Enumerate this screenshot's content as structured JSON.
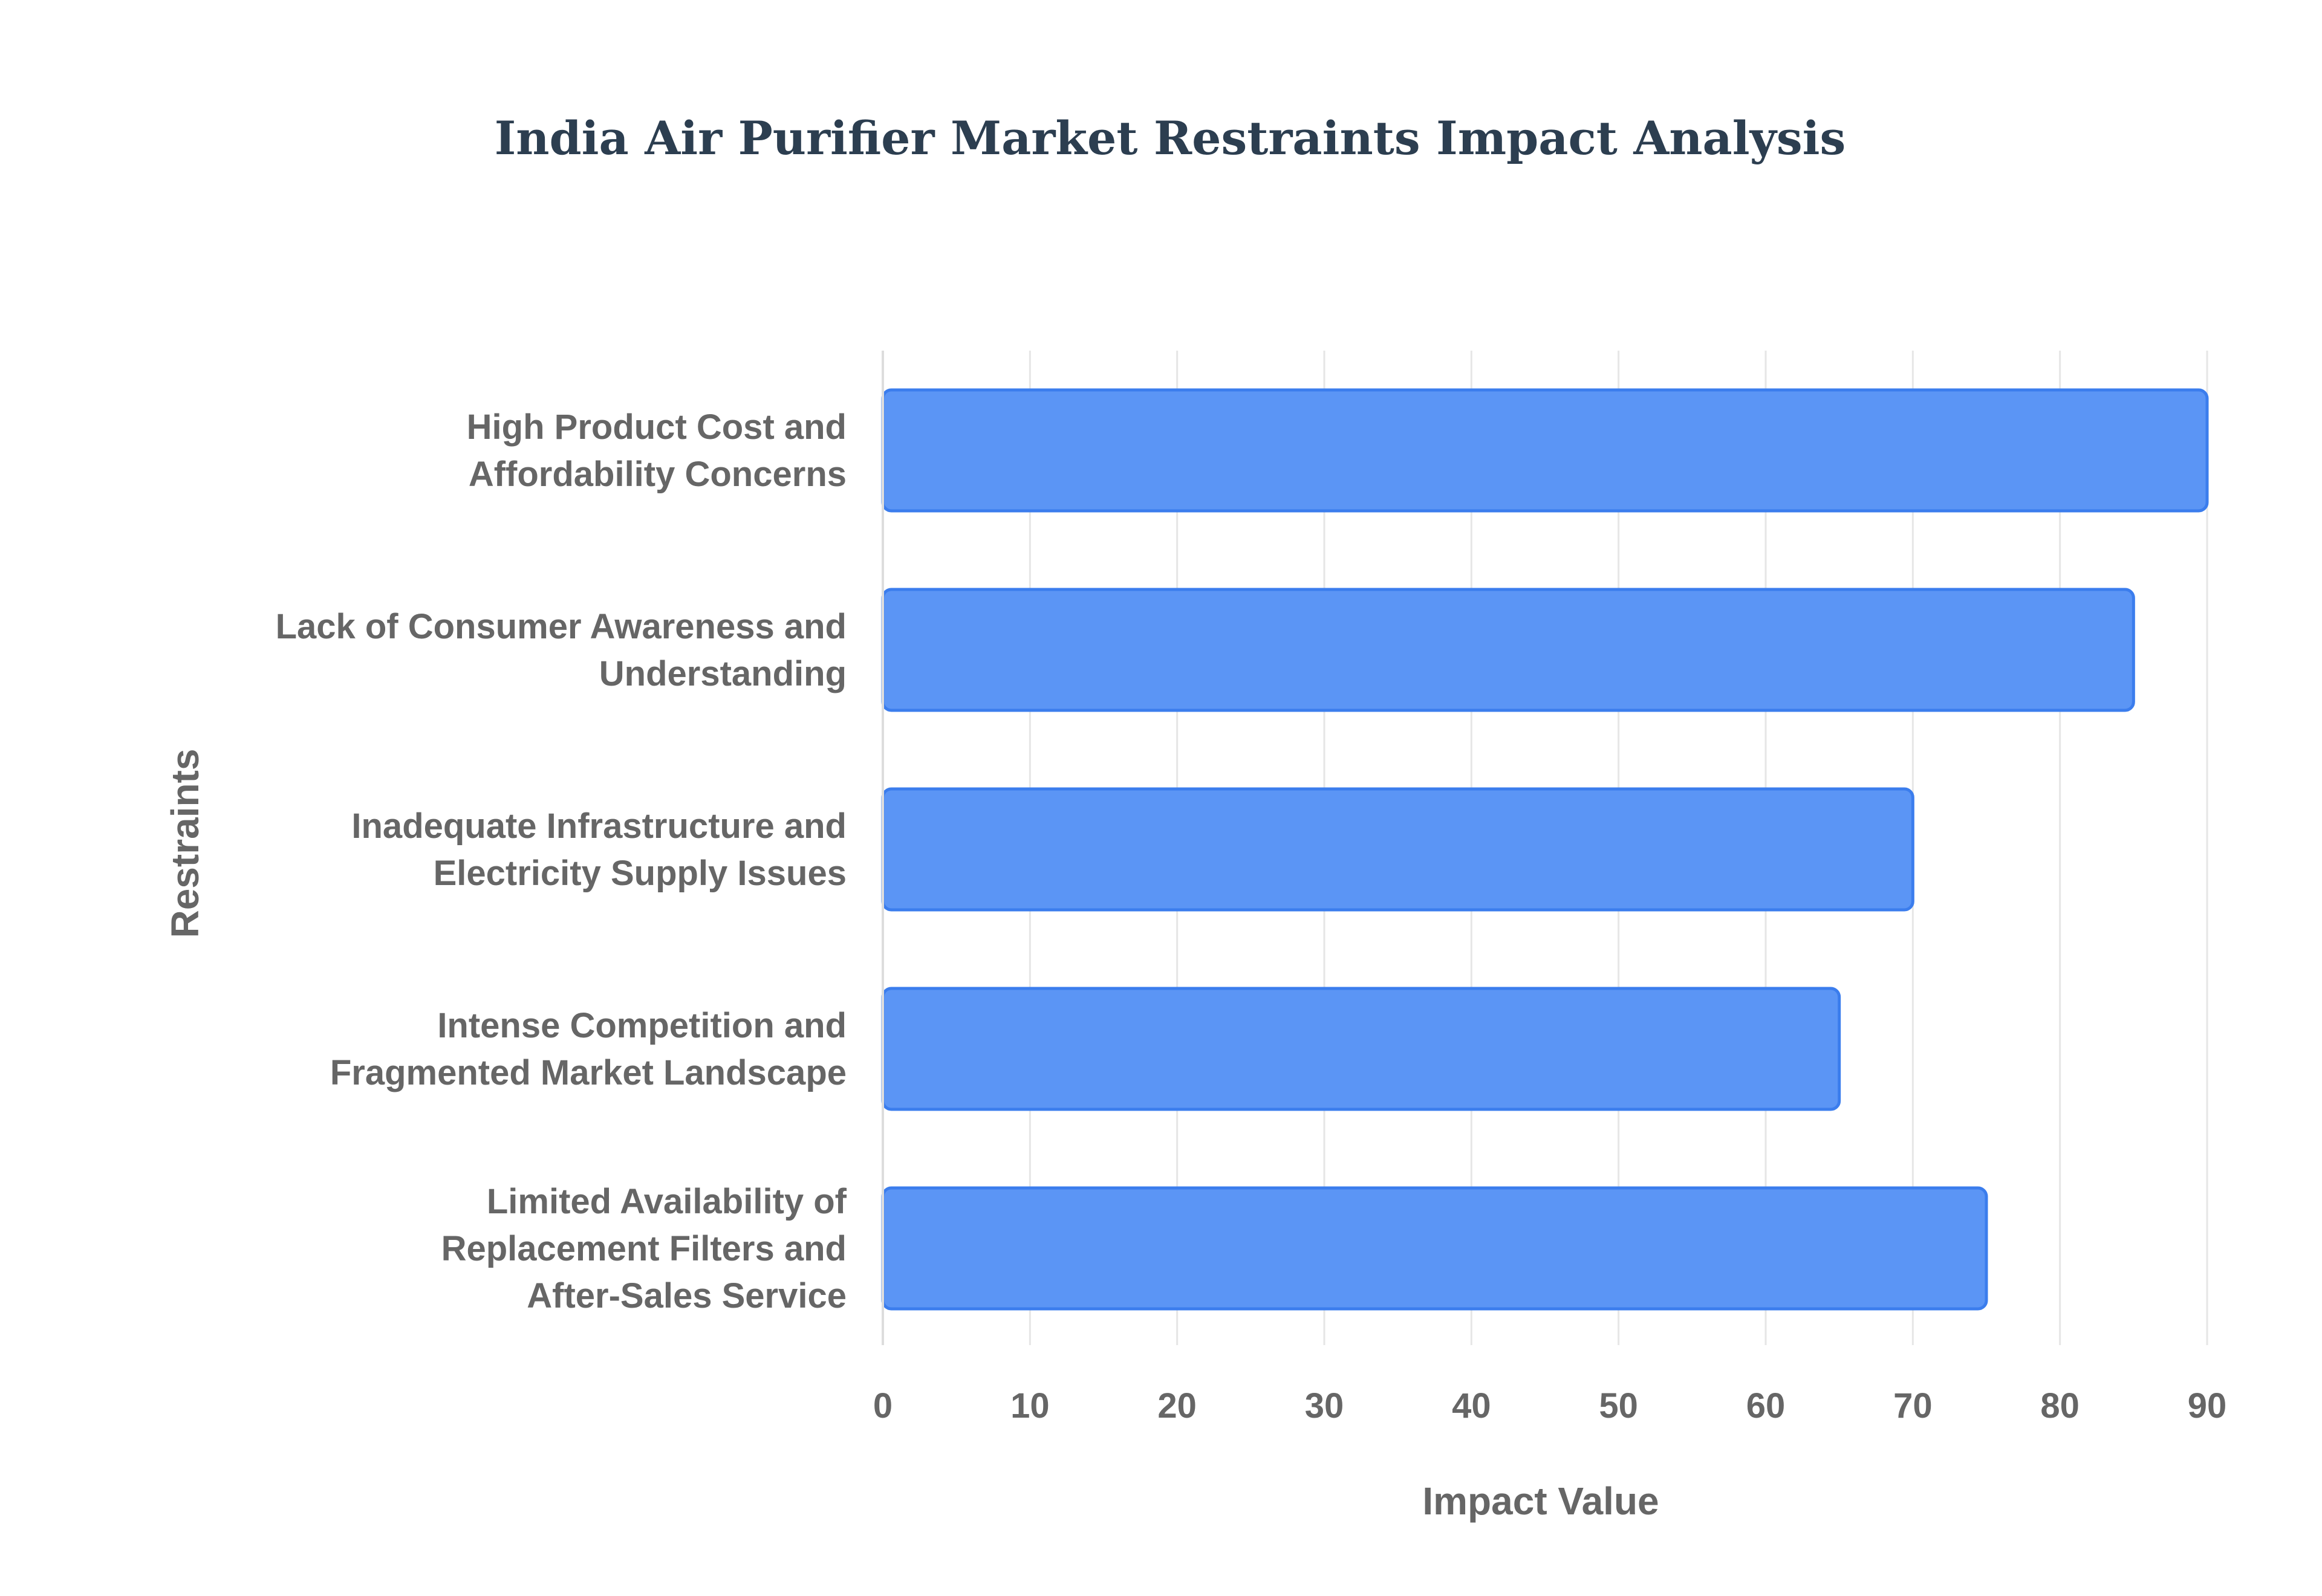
{
  "chart_data": {
    "type": "bar",
    "orientation": "horizontal",
    "title": "India Air Purifier Market Restraints Impact Analysis",
    "xlabel": "Impact Value",
    "ylabel": "Restraints",
    "xlim": [
      0,
      90
    ],
    "x_ticks": [
      0,
      10,
      20,
      30,
      40,
      50,
      60,
      70,
      80,
      90
    ],
    "grid": true,
    "legend": "none",
    "categories": [
      [
        "High Product Cost and",
        "Affordability Concerns"
      ],
      [
        "Lack of Consumer Awareness and",
        "Understanding"
      ],
      [
        "Inadequate Infrastructure and",
        "Electricity Supply Issues"
      ],
      [
        "Intense Competition and",
        "Fragmented Market Landscape"
      ],
      [
        "Limited Availability of",
        "Replacement Filters and",
        "After-Sales Service"
      ]
    ],
    "series": [
      {
        "values": [
          90,
          85,
          70,
          65,
          75
        ]
      }
    ],
    "colors": {
      "bar_fill": "#5b95f5",
      "bar_stroke": "#3b7ded",
      "title": "#2c3e50",
      "text": "#666666",
      "grid": "#e6e6e6"
    }
  }
}
